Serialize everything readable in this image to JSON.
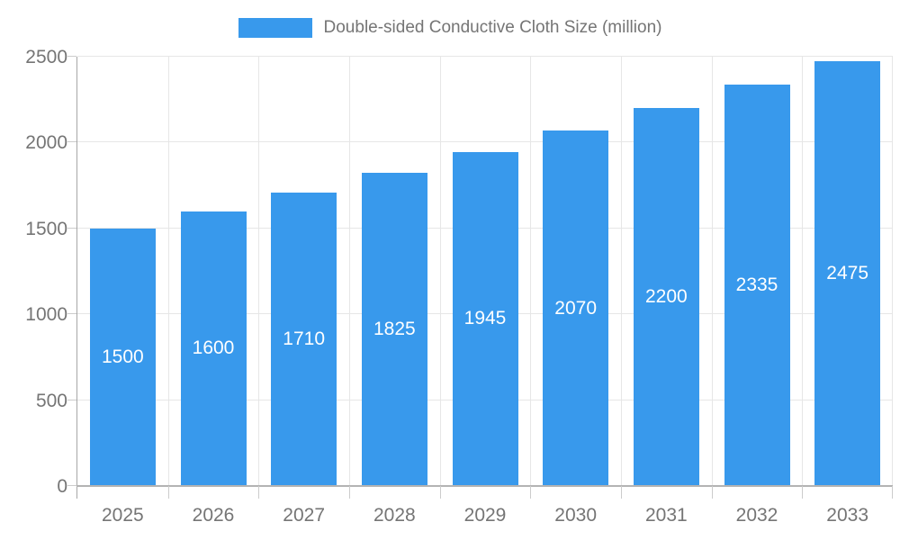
{
  "legend": {
    "label": "Double-sided Conductive Cloth Size (million)"
  },
  "chart_data": {
    "type": "bar",
    "title": "Double-sided Conductive Cloth Size (million)",
    "series_name": "Double-sided Conductive Cloth Size (million)",
    "categories": [
      "2025",
      "2026",
      "2027",
      "2028",
      "2029",
      "2030",
      "2031",
      "2032",
      "2033"
    ],
    "values": [
      1500,
      1600,
      1710,
      1825,
      1945,
      2070,
      2200,
      2335,
      2475
    ],
    "xlabel": "",
    "ylabel": "",
    "ylim": [
      0,
      2500
    ],
    "y_ticks": [
      0,
      500,
      1000,
      1500,
      2000,
      2500
    ],
    "grid": true,
    "legend_position": "top",
    "value_labels": "inside-center",
    "colors": {
      "bar": "#3899ec",
      "bar_value_text": "#ffffff",
      "axis_text": "#757575",
      "legend_text": "#757575",
      "gridline": "#e6e6e6",
      "axis_line": "#a6a6a6",
      "baseline": "#b3b3b3",
      "tick": "#cccccc",
      "background": "#ffffff"
    }
  }
}
